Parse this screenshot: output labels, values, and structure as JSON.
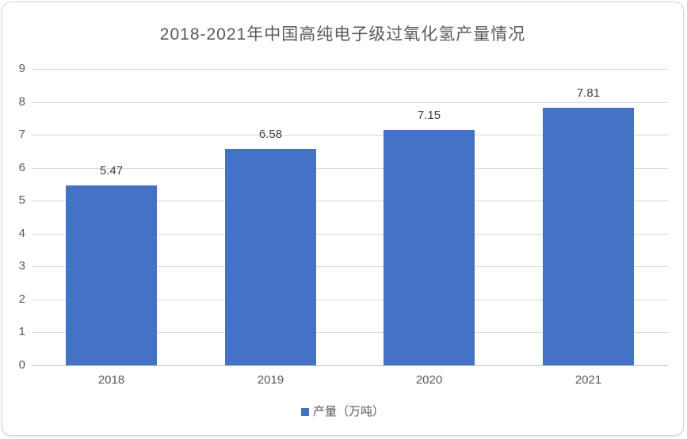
{
  "chart_data": {
    "type": "bar",
    "title": "2018-2021年中国高纯电子级过氧化氢产量情况",
    "categories": [
      "2018",
      "2019",
      "2020",
      "2021"
    ],
    "series": [
      {
        "name": "产量（万吨）",
        "values": [
          5.47,
          6.58,
          7.15,
          7.81
        ]
      }
    ],
    "value_labels": [
      "5.47",
      "6.58",
      "7.15",
      "7.81"
    ],
    "xlabel": "",
    "ylabel": "",
    "ylim": [
      0,
      9
    ],
    "yticks": [
      0,
      1,
      2,
      3,
      4,
      5,
      6,
      7,
      8,
      9
    ],
    "grid": "horizontal",
    "legend_position": "bottom",
    "colors": {
      "bar": "#4472C4",
      "gridline": "#D9D9D9",
      "axis_line": "#C3C3C3",
      "title_text": "#595959",
      "tick_text": "#595959",
      "value_label_text": "#404040"
    }
  },
  "legend": {
    "marker": "square-icon",
    "label": "产量（万吨）"
  }
}
